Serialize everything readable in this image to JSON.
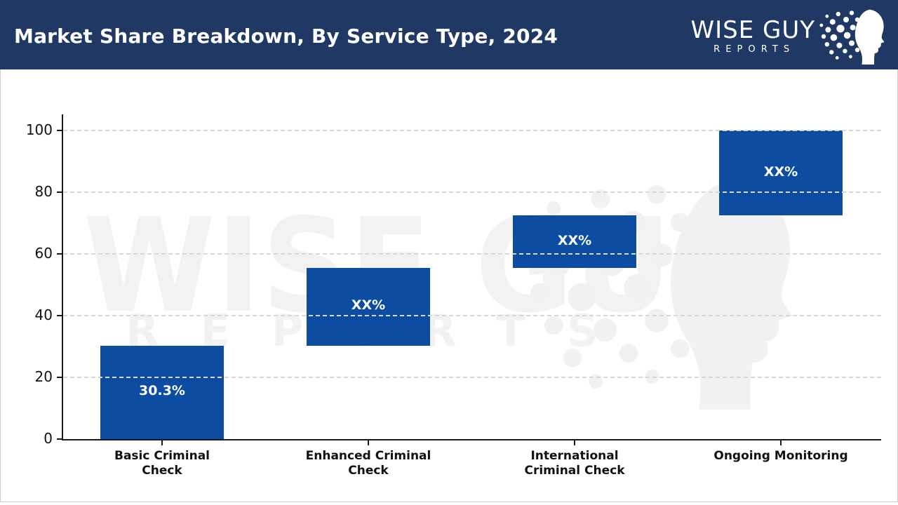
{
  "header": {
    "title": "Market Share Breakdown, By Service Type, 2024",
    "logo": {
      "line1": "WISE GUY",
      "line2": "REPORTS"
    }
  },
  "watermark": {
    "line1": "WISE GUY",
    "line2": "REPORTS"
  },
  "colors": {
    "header_bg": "#1F3864",
    "bar": "#0C4DA2",
    "grid": "#D9D9D9",
    "axis": "#1A1A1A",
    "text": "#111111",
    "bar_label": "#FFFFFF",
    "watermark": "#F2F2F3"
  },
  "chart_data": {
    "type": "bar",
    "subtype": "waterfall-floating-bars",
    "title": "Market Share Breakdown, By Service Type, 2024",
    "xlabel": "",
    "ylabel": "",
    "categories": [
      "Basic Criminal\nCheck",
      "Enhanced Criminal\nCheck",
      "International\nCriminal Check",
      "Ongoing Monitoring"
    ],
    "segments": [
      {
        "category": "Basic Criminal Check",
        "start": 0,
        "end": 30.3,
        "label": "30.3%"
      },
      {
        "category": "Enhanced Criminal Check",
        "start": 30.3,
        "end": 55.5,
        "label": "XX%"
      },
      {
        "category": "International Criminal Check",
        "start": 55.5,
        "end": 72.4,
        "label": "XX%"
      },
      {
        "category": "Ongoing Monitoring",
        "start": 72.4,
        "end": 100,
        "label": "XX%"
      }
    ],
    "yticks": [
      0,
      20,
      40,
      60,
      80,
      100
    ],
    "ylim": [
      0,
      105
    ],
    "grid": "dashed-horizontal-above-bars",
    "legend": "none"
  }
}
